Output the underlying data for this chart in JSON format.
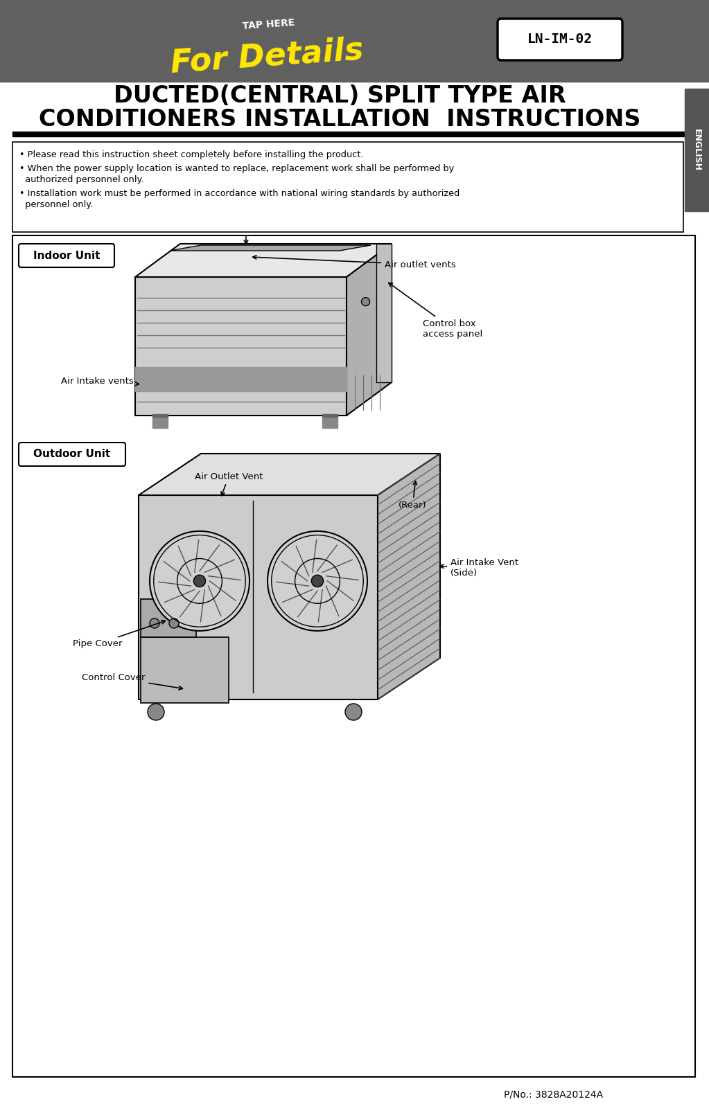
{
  "bg_header_color": "#606060",
  "bg_body_color": "#ffffff",
  "tap_here_text": "TAP HERE",
  "for_details_text": "For Details",
  "model_text": "LN-IM-02",
  "title_line1": "DUCTED(CENTRAL) SPLIT TYPE AIR",
  "title_line2": "CONDITIONERS INSTALLATION  INSTRUCTIONS",
  "bullet1": "• Please read this instruction sheet completely before installing the product.",
  "bullet2_line1": "• When the power supply location is wanted to replace, replacement work shall be performed by",
  "bullet2_line2": "  authorized personnel only.",
  "bullet3_line1": "• Installation work must be performed in accordance with national wiring standards by authorized",
  "bullet3_line2": "  personnel only.",
  "indoor_label": "Indoor Unit",
  "outdoor_label": "Outdoor Unit",
  "label_air_outlet_vents": "Air outlet vents",
  "label_control_box_line1": "Control box",
  "label_control_box_line2": "access panel",
  "label_air_intake_vents": "Air Intake vents",
  "label_air_outlet_vent": "Air Outlet Vent",
  "label_rear": "(Rear)",
  "label_air_intake_vent_side_line1": "Air Intake Vent",
  "label_air_intake_vent_side_line2": "(Side)",
  "label_pipe_cover": "Pipe Cover",
  "label_control_cover": "Control Cover",
  "label_pno": "P/No.: 3828A20124A",
  "english_tab": "ENGLISH",
  "yellow_color": "#FFE800",
  "black": "#000000",
  "white": "#ffffff",
  "dark_gray": "#555555",
  "mid_gray": "#888888",
  "light_gray": "#d8d8d8",
  "header_gray": "#606060"
}
